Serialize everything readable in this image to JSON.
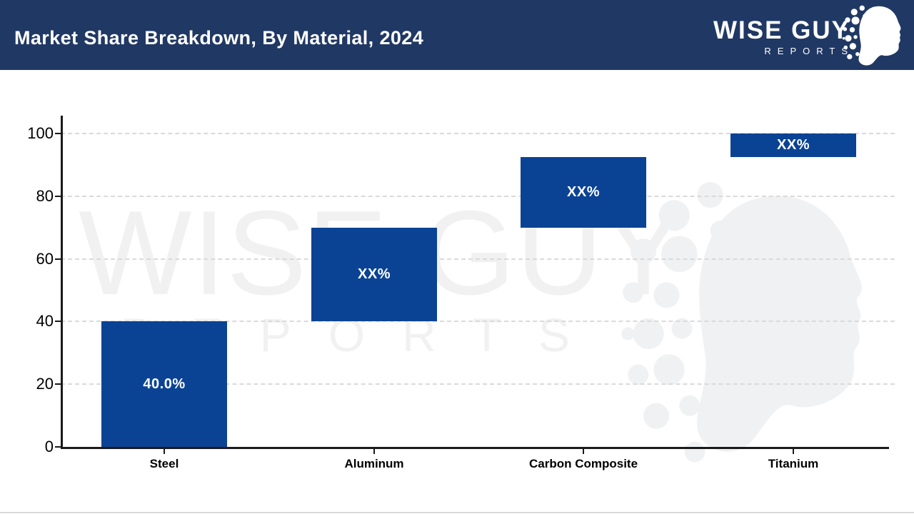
{
  "header": {
    "title": "Market Share Breakdown, By Material, 2024",
    "logo": {
      "wordmark": "WISE GUY",
      "subtext": "REPORTS"
    }
  },
  "watermark": {
    "wordmark": "WISE GUY",
    "subtext": "REPORTS"
  },
  "chart_data": {
    "type": "bar",
    "subtype": "floating-waterfall",
    "title": "Market Share Breakdown, By Material, 2024",
    "categories": [
      "Steel",
      "Aluminum",
      "Carbon Composite",
      "Titanium"
    ],
    "segments": [
      {
        "category": "Steel",
        "start": 0,
        "end": 40,
        "label": "40.0%"
      },
      {
        "category": "Aluminum",
        "start": 40,
        "end": 70,
        "label": "XX%"
      },
      {
        "category": "Carbon Composite",
        "start": 70,
        "end": 92.5,
        "label": "XX%"
      },
      {
        "category": "Titanium",
        "start": 92.5,
        "end": 100,
        "label": "XX%"
      }
    ],
    "yticks": [
      0,
      20,
      40,
      60,
      80,
      100
    ],
    "ylim": [
      0,
      106
    ],
    "xlabel": "",
    "ylabel": "",
    "grid": {
      "horizontal": true,
      "style": "dashed"
    },
    "legend": {
      "visible": false
    },
    "colors": {
      "bar": "#0b4394",
      "grid": "#dadada",
      "axis": "#1a1a1a",
      "header_bg": "#203864",
      "bar_label": "#ffffff",
      "watermark": "#f1f1f1"
    }
  }
}
